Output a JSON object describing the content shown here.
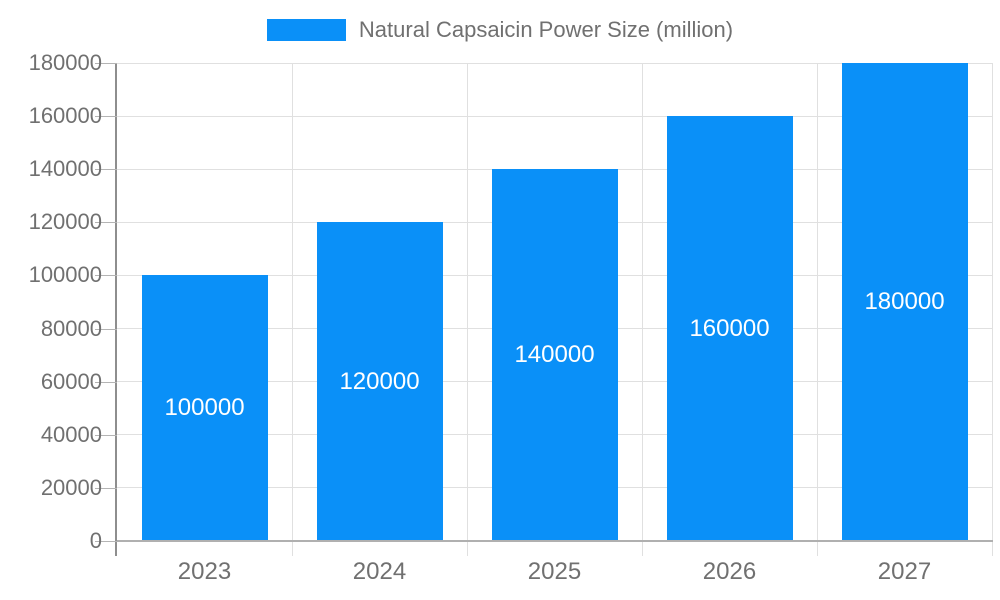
{
  "legend": {
    "series_label": "Natural Capsaicin Power Size (million)"
  },
  "chart_data": {
    "type": "bar",
    "title": "Natural Capsaicin Power Size (million)",
    "categories": [
      "2023",
      "2024",
      "2025",
      "2026",
      "2027"
    ],
    "series": [
      {
        "name": "Natural Capsaicin Power Size (million)",
        "values": [
          100000,
          120000,
          140000,
          160000,
          180000
        ],
        "color": "#0a90f8"
      }
    ],
    "bar_value_labels": [
      "100000",
      "120000",
      "140000",
      "160000",
      "180000"
    ],
    "y_tick_values": [
      0,
      20000,
      40000,
      60000,
      80000,
      100000,
      120000,
      140000,
      160000,
      180000
    ],
    "y_tick_labels": [
      "0",
      "20000",
      "40000",
      "60000",
      "80000",
      "100000",
      "120000",
      "140000",
      "160000",
      "180000"
    ],
    "ylim": [
      0,
      180000
    ],
    "xlabel": "",
    "ylabel": "",
    "grid": true,
    "legend_position": "top",
    "value_label_color": "#ffffff"
  },
  "colors": {
    "bar": "#0a90f8",
    "background": "#ffffff",
    "gridline": "#e0e0e0",
    "x_axis_line": "#b0b0b0",
    "y_axis_line": "#8e8e8e",
    "tick_text": "#707070"
  }
}
